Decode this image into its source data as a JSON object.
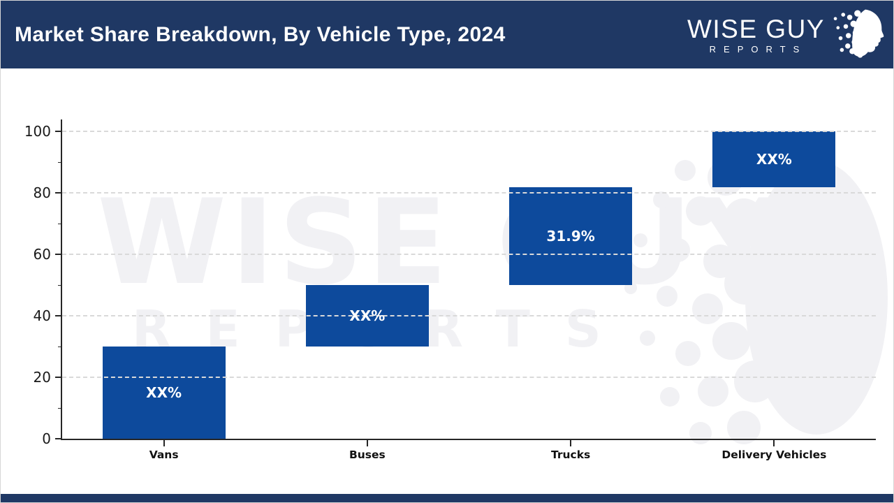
{
  "header": {
    "title": "Market Share Breakdown, By Vehicle Type, 2024",
    "logo": {
      "line1": "WISE GUY",
      "line2": "REPORTS",
      "face_icon": "dotted-head-profile"
    }
  },
  "watermark": {
    "line1": "WISE GUY",
    "line2": "REPORTS",
    "head_icon": "dotted-head-profile"
  },
  "colors": {
    "header_bg": "#1f3864",
    "footer_bg": "#1f3864",
    "title_text": "#ffffff",
    "bar": "#0d4a9c",
    "bar_label": "#ffffff",
    "grid": "#d9d9d9",
    "axis": "#262626",
    "tick_text": "#1a1a1a",
    "watermark": "#f1f1f4"
  },
  "chart_data": {
    "type": "bar",
    "subtype": "floating-waterfall",
    "title": "Market Share Breakdown, By Vehicle Type, 2024",
    "categories": [
      "Vans",
      "Buses",
      "Trucks",
      "Delivery Vehicles"
    ],
    "series": [
      {
        "name": "Market share (%)",
        "segments": [
          {
            "category": "Vans",
            "start": 0,
            "end": 30,
            "label": "XX%"
          },
          {
            "category": "Buses",
            "start": 30,
            "end": 50,
            "label": "XX%"
          },
          {
            "category": "Trucks",
            "start": 50,
            "end": 81.9,
            "label": "31.9%"
          },
          {
            "category": "Delivery Vehicles",
            "start": 81.9,
            "end": 100,
            "label": "XX%"
          }
        ]
      }
    ],
    "ylim": [
      0,
      100
    ],
    "yticks": [
      0,
      20,
      40,
      60,
      80,
      100
    ],
    "xlabel": "",
    "ylabel": "",
    "grid": "horizontal-dashed",
    "legend": "none"
  }
}
